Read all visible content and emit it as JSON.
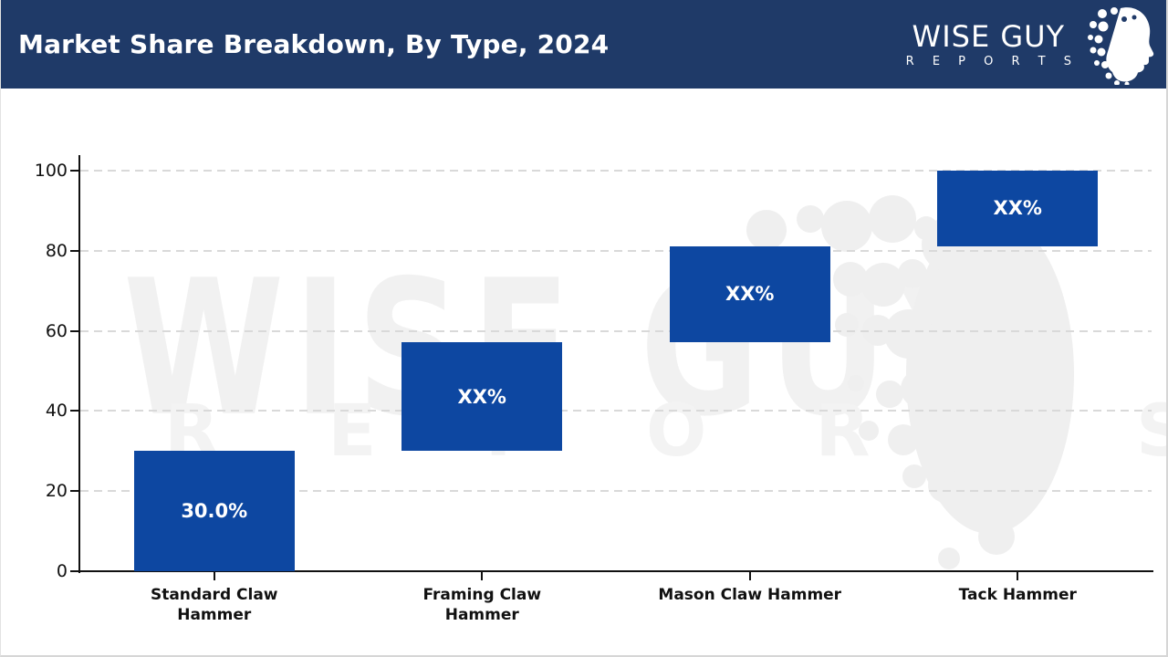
{
  "header": {
    "title": "Market Share Breakdown, By Type, 2024",
    "logo": {
      "line1": "WISE GUY",
      "line2": "R E P O R T S"
    }
  },
  "watermark": {
    "line1": "WISE GUY",
    "line2": "R E P O R T S"
  },
  "chart_data": {
    "type": "bar",
    "subtype": "waterfall",
    "title": "Market Share Breakdown, By Type, 2024",
    "categories": [
      "Standard Claw\nHammer",
      "Framing Claw\nHammer",
      "Mason Claw Hammer",
      "Tack Hammer"
    ],
    "series": [
      {
        "name": "Market share (%)",
        "segment_start": [
          0,
          30,
          57.2,
          81.2
        ],
        "segment_end": [
          30,
          57.2,
          81.2,
          100
        ],
        "values": [
          30.0,
          27.2,
          24.0,
          18.8
        ]
      }
    ],
    "bar_labels": [
      "30.0%",
      "XX%",
      "XX%",
      "XX%"
    ],
    "yticks": [
      0,
      20,
      40,
      60,
      80,
      100
    ],
    "ylim": [
      0,
      104
    ],
    "xlabel": "",
    "ylabel": "",
    "grid": "horizontal-dashed",
    "legend": "none",
    "bar_color": "#0d47a1",
    "bar_label_color": "#ffffff"
  },
  "colors": {
    "header_bg": "#1f3a68",
    "bar": "#0d47a1",
    "gridline": "#d9d9d9",
    "axis": "#111111",
    "watermark": "#f0f0f0",
    "frame": "#d6d6d6"
  }
}
